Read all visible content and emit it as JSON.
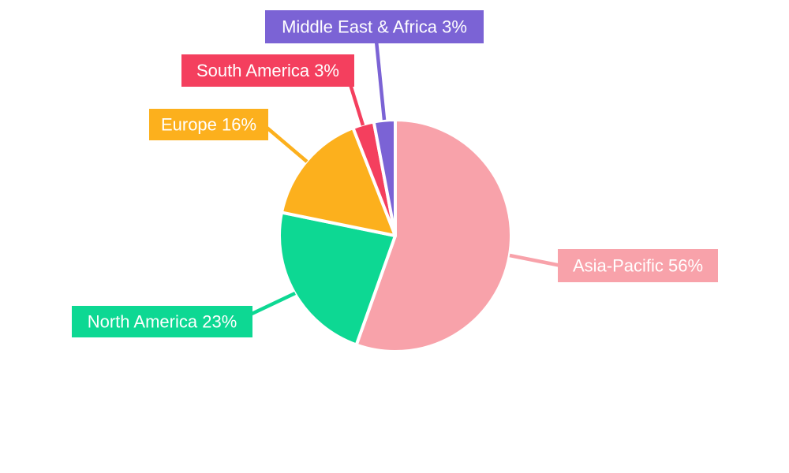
{
  "chart_data": {
    "type": "pie",
    "title": "",
    "legend_position": "none",
    "background_color": "#FFFFFF",
    "label_text_color": "#FFFFFF",
    "slice_border_color": "#FFFFFF",
    "start_angle_deg_from_top": 0,
    "direction": "clockwise",
    "unit": "%",
    "categories": [
      "Asia-Pacific",
      "North America",
      "Europe",
      "South America",
      "Middle East & Africa"
    ],
    "values": [
      56,
      23,
      16,
      3,
      3
    ],
    "slices": [
      {
        "name": "Asia-Pacific",
        "value": 56,
        "label": "Asia-Pacific 56%",
        "color": "#F8A2AA"
      },
      {
        "name": "North America",
        "value": 23,
        "label": "North America 23%",
        "color": "#0DD893"
      },
      {
        "name": "Europe",
        "value": 16,
        "label": "Europe 16%",
        "color": "#FCB01D"
      },
      {
        "name": "South America",
        "value": 3,
        "label": "South America 3%",
        "color": "#F43F5E"
      },
      {
        "name": "Middle East & Africa",
        "value": 3,
        "label": "Middle East & Africa 3%",
        "color": "#7B63D5"
      }
    ]
  }
}
